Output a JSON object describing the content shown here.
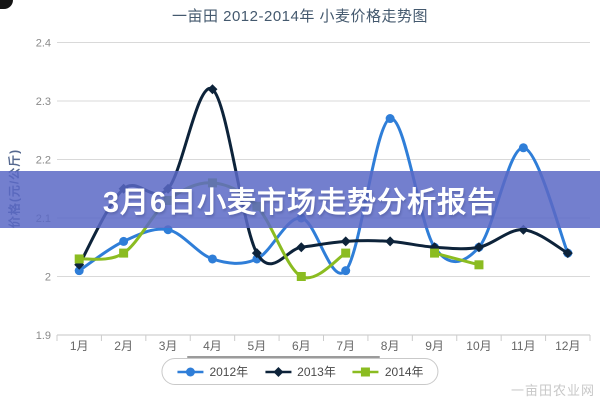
{
  "banner": {
    "text": "3月6日小麦市场走势分析报告",
    "bg_color": "rgba(90,104,198,0.85)",
    "text_color": "#ffffff"
  },
  "watermark": {
    "text": "一亩田农业网"
  },
  "chart_data": {
    "type": "line",
    "title": "一亩田 2012-2014年 小麦价格走势图",
    "xlabel": "",
    "ylabel": "价格(元/公斤)",
    "categories": [
      "1月",
      "2月",
      "3月",
      "4月",
      "5月",
      "6月",
      "7月",
      "8月",
      "9月",
      "10月",
      "11月",
      "12月"
    ],
    "y_ticks": [
      2.4,
      2.3,
      2.2,
      2.1,
      2.0,
      1.9
    ],
    "y_tick_labels": [
      "2.4",
      "2.3",
      "2.2",
      "2.1",
      "2",
      "1.9"
    ],
    "ylim": [
      1.9,
      2.4
    ],
    "grid": true,
    "line_style": "spline",
    "legend_position": "bottom",
    "series": [
      {
        "name": "2012年",
        "color": "#2f7ed8",
        "marker": "circle",
        "values": [
          2.01,
          2.06,
          2.08,
          2.03,
          2.03,
          2.1,
          2.01,
          2.27,
          2.05,
          2.05,
          2.22,
          2.04
        ]
      },
      {
        "name": "2013年",
        "color": "#0d233a",
        "marker": "diamond",
        "values": [
          2.02,
          2.15,
          2.15,
          2.32,
          2.04,
          2.05,
          2.06,
          2.06,
          2.05,
          2.05,
          2.08,
          2.04
        ]
      },
      {
        "name": "2014年",
        "color": "#8bbc21",
        "marker": "square",
        "values": [
          2.03,
          2.04,
          2.13,
          2.16,
          2.12,
          2.0,
          2.04,
          null,
          2.04,
          2.02,
          null,
          null
        ]
      }
    ]
  }
}
